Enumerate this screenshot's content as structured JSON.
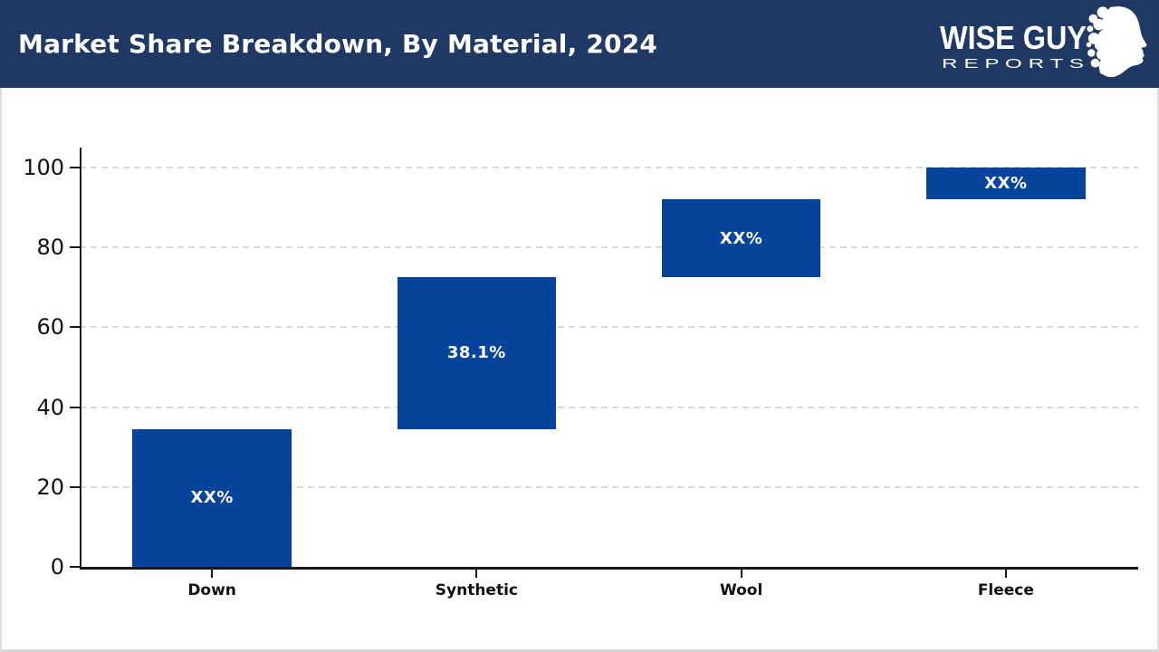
{
  "header": {
    "title": "Market Share Breakdown, By Material, 2024",
    "logo": {
      "brand": "WISE GUY",
      "sub": "R E P O R T S"
    }
  },
  "watermark": {
    "line1": "WISE GUY",
    "line2": "R E P O R T S"
  },
  "colors": {
    "header_bg": "#1f3864",
    "bar_blue": "#05449a",
    "gridline_gray": "#d9d9d9",
    "watermark_gray": "#f1f2f4",
    "axis_black": "#1a1a1a",
    "bar_label_white": "#ffffff"
  },
  "chart_data": {
    "type": "bar",
    "subtype": "waterfall",
    "title": "Market Share Breakdown, By Material, 2024",
    "categories": [
      "Down",
      "Synthetic",
      "Wool",
      "Fleece"
    ],
    "segments": [
      {
        "category": "Down",
        "start": 0,
        "end": 34.5,
        "value_label": "XX%"
      },
      {
        "category": "Synthetic",
        "start": 34.5,
        "end": 72.6,
        "value_label": "38.1%"
      },
      {
        "category": "Wool",
        "start": 72.6,
        "end": 92.0,
        "value_label": "XX%"
      },
      {
        "category": "Fleece",
        "start": 92.0,
        "end": 100.0,
        "value_label": "XX%"
      }
    ],
    "yticks": [
      0,
      20,
      40,
      60,
      80,
      100
    ],
    "ylim": [
      0,
      105
    ],
    "xlabel": "",
    "ylabel": "",
    "grid": "dashed-horizontal",
    "legend": null
  }
}
